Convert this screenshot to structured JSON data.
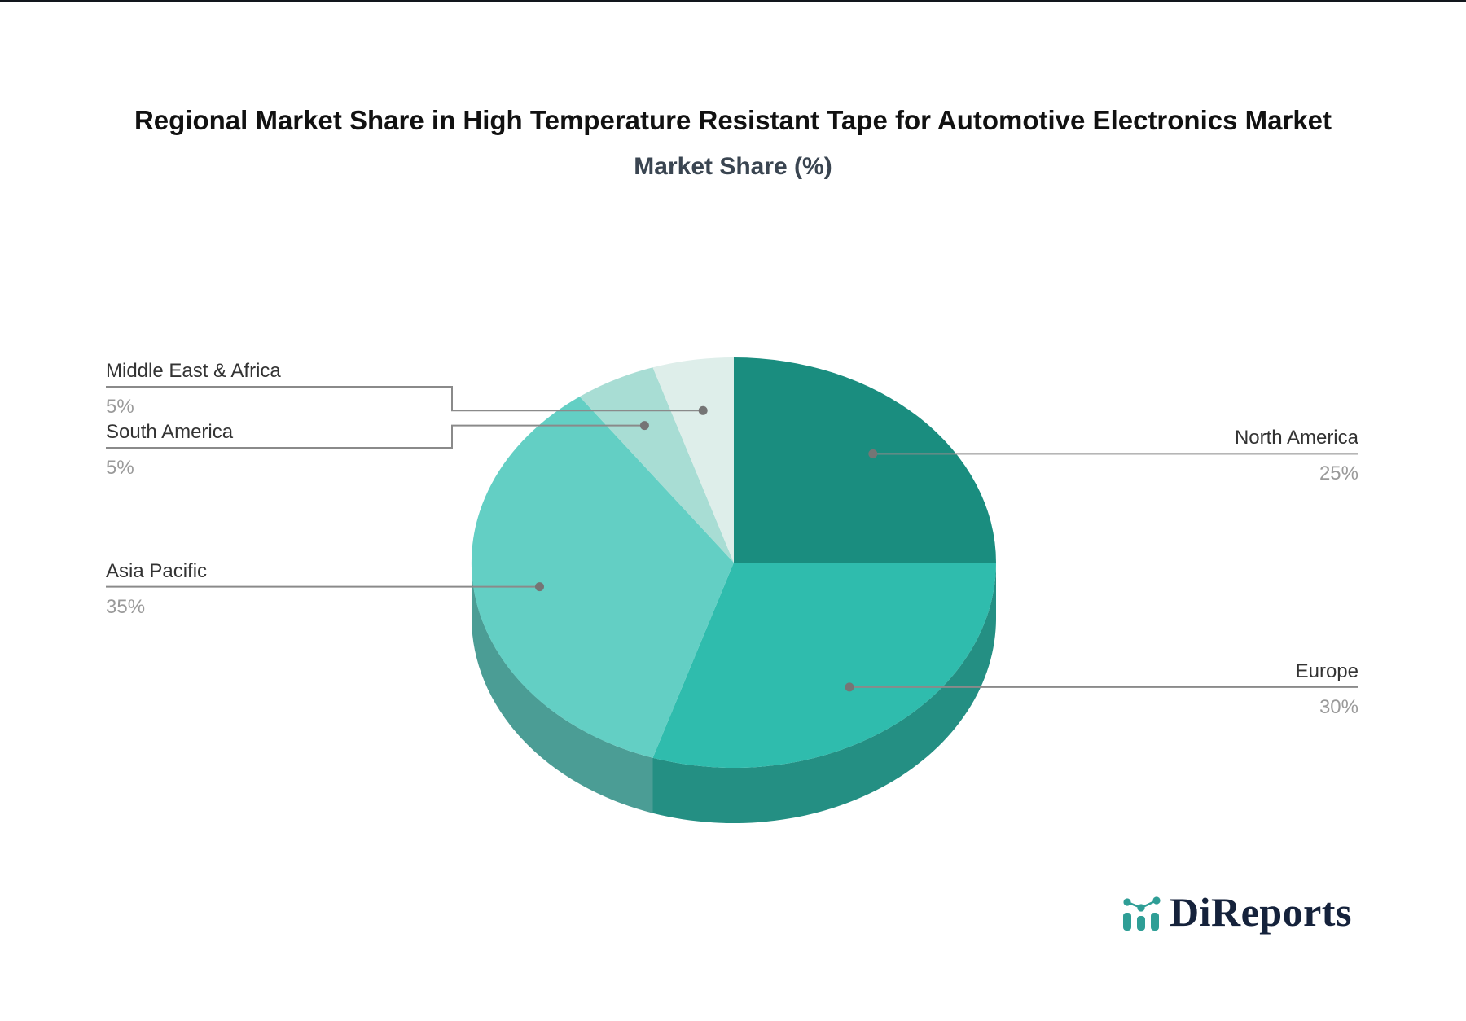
{
  "page": {
    "title": "Regional Market Share in High Temperature Resistant Tape for Automotive Electronics Market",
    "subtitle": "Market Share (%)"
  },
  "chart_data": {
    "type": "pie",
    "style": "3d-pie",
    "title": "Regional Market Share in High Temperature Resistant Tape for Automotive Electronics Market",
    "subtitle": "Market Share (%)",
    "unit": "%",
    "start_angle": "top, clockwise",
    "labels": [
      "North America",
      "Europe",
      "Asia Pacific",
      "South America",
      "Middle East & Africa"
    ],
    "values": [
      25,
      30,
      35,
      5,
      5
    ],
    "display_values": [
      "25%",
      "30%",
      "35%",
      "5%",
      "5%"
    ],
    "colors": [
      "#1a8d7f",
      "#2fbcad",
      "#63cfc4",
      "#a8ddd4",
      "#deeeea"
    ],
    "leader_line_color": "#8a8a8a",
    "leader_dot_color": "#757575",
    "label_text_color": "#333333",
    "value_text_color": "#9a9a9a"
  },
  "logo": {
    "text": "DiReports",
    "icon": "bar-chart-with-trend-line-icon",
    "icon_color": "#2f9e96",
    "text_color": "#15223b"
  }
}
